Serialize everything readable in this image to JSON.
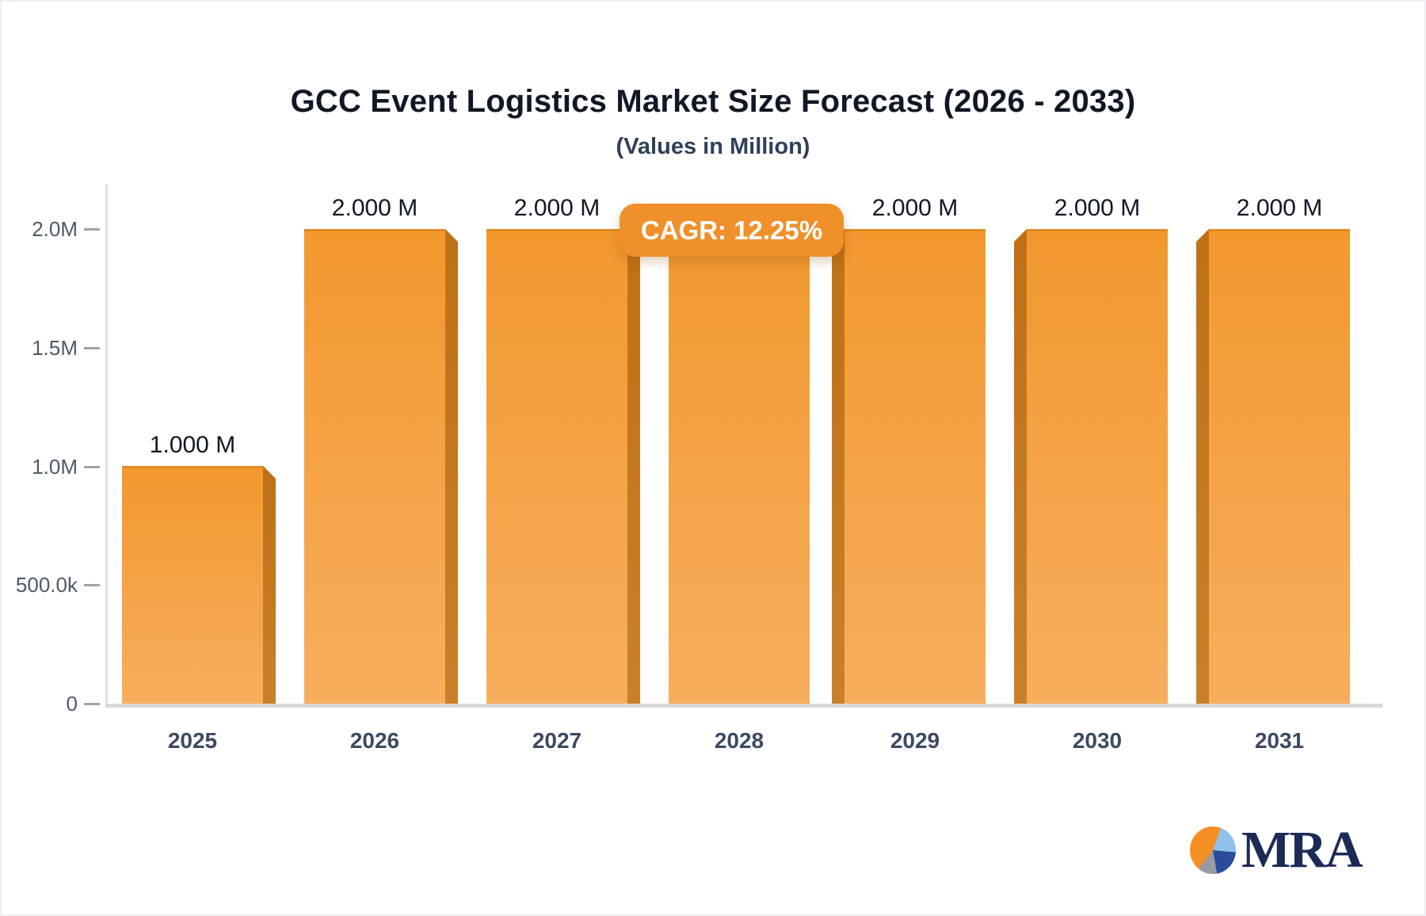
{
  "header": {
    "title": "GCC Event Logistics Market Size Forecast (2026 - 2033)",
    "subtitle": "(Values in Million)"
  },
  "chart_data": {
    "type": "bar",
    "title": "GCC Event Logistics Market Size Forecast (2026 - 2033)",
    "subtitle": "(Values in Million)",
    "xlabel": "",
    "ylabel": "",
    "categories": [
      "2025",
      "2026",
      "2027",
      "2028",
      "2029",
      "2030",
      "2031"
    ],
    "values": [
      1000000,
      2000000,
      2000000,
      2000000,
      2000000,
      2000000,
      2000000
    ],
    "bar_labels": [
      "1.000 M",
      "2.000 M",
      "2.000 M",
      null,
      "2.000 M",
      "2.000 M",
      "2.000 M"
    ],
    "ylim": [
      0,
      2000000
    ],
    "y_ticks": [
      {
        "label": "2.0M",
        "value": 2000000
      },
      {
        "label": "1.5M",
        "value": 1500000
      },
      {
        "label": "1.0M",
        "value": 1000000
      },
      {
        "label": "500.0k",
        "value": 500000
      },
      {
        "label": "0",
        "value": 0
      }
    ],
    "grid": false,
    "legend": null,
    "annotation": {
      "label": "CAGR: 12.25%",
      "position_category": "2028",
      "note": "badge covers the 2028 bar value label"
    },
    "colors": {
      "bar_face_top": "#f2982e",
      "bar_face_bottom": "#f7ae5d",
      "bar_side": "#c4771d",
      "bar_top_edge": "#e08b27",
      "badge_bg": "#f0902a",
      "badge_text": "#ffffff"
    }
  },
  "badge": {
    "label": "CAGR: 12.25%"
  },
  "logo": {
    "text": "MRA",
    "text_color": "#1b2a57",
    "pie_colors": {
      "orange": "#f59025",
      "light_blue": "#8fc2ea",
      "dark_blue": "#2a4c9b",
      "gray": "#9a9aa2"
    }
  }
}
